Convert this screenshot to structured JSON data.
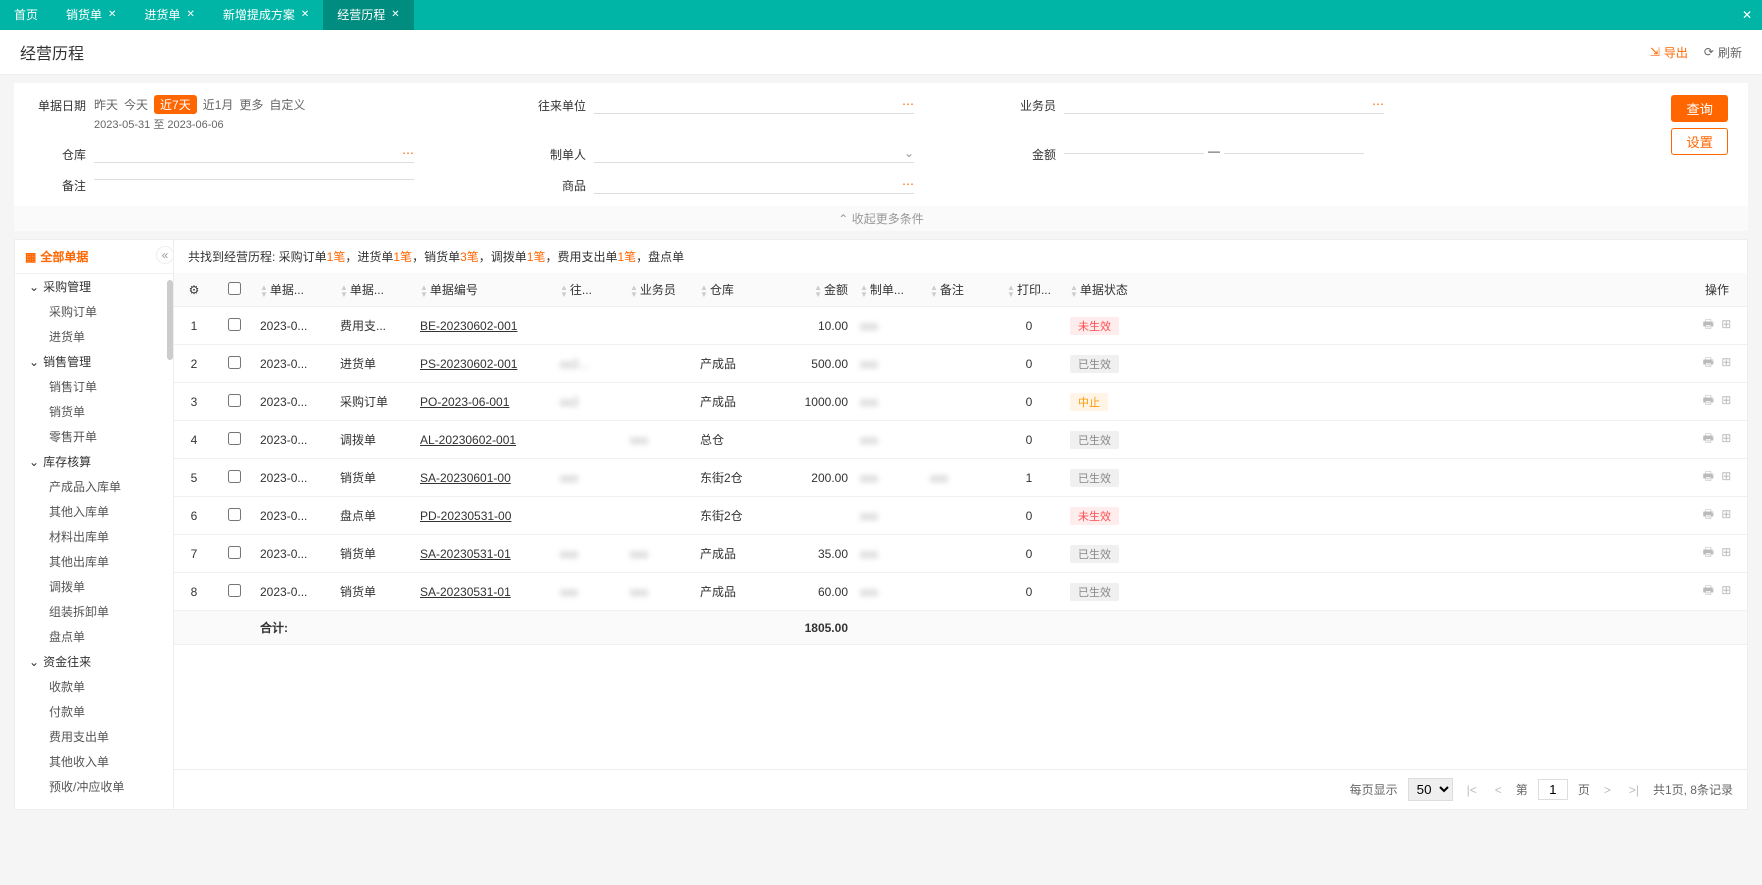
{
  "tabs": [
    {
      "label": "首页",
      "closable": false,
      "active": false
    },
    {
      "label": "销货单",
      "closable": true,
      "active": false
    },
    {
      "label": "进货单",
      "closable": true,
      "active": false
    },
    {
      "label": "新增提成方案",
      "closable": true,
      "active": false
    },
    {
      "label": "经营历程",
      "closable": true,
      "active": true
    }
  ],
  "page": {
    "title": "经营历程",
    "export_label": "导出",
    "refresh_label": "刷新"
  },
  "filters": {
    "date_label": "单据日期",
    "date_quick": [
      "昨天",
      "今天",
      "近7天",
      "近1月",
      "更多",
      "自定义"
    ],
    "date_active_index": 2,
    "date_range": "2023-05-31 至 2023-06-06",
    "partner_label": "往来单位",
    "biz_label": "业务员",
    "warehouse_label": "仓库",
    "maker_label": "制单人",
    "amount_label": "金额",
    "remark_label": "备注",
    "goods_label": "商品",
    "search_btn": "查询",
    "settings_btn": "设置",
    "collapse_label": "收起更多条件"
  },
  "sidebar": {
    "header": "全部单据",
    "groups": [
      {
        "title": "采购管理",
        "items": [
          "采购订单",
          "进货单"
        ]
      },
      {
        "title": "销售管理",
        "items": [
          "销售订单",
          "销货单",
          "零售开单"
        ]
      },
      {
        "title": "库存核算",
        "items": [
          "产成品入库单",
          "其他入库单",
          "材料出库单",
          "其他出库单",
          "调拨单",
          "组装拆卸单",
          "盘点单"
        ]
      },
      {
        "title": "资金往来",
        "items": [
          "收款单",
          "付款单",
          "费用支出单",
          "其他收入单",
          "预收/冲应收单"
        ]
      }
    ]
  },
  "summary": {
    "prefix": "共找到经营历程: ",
    "parts": [
      {
        "label": "采购订单",
        "count": "1笔"
      },
      {
        "label": "进货单",
        "count": "1笔"
      },
      {
        "label": "销货单",
        "count": "3笔"
      },
      {
        "label": "调拨单",
        "count": "1笔"
      },
      {
        "label": "费用支出单",
        "count": "1笔"
      },
      {
        "label": "盘点单",
        "count": ""
      }
    ]
  },
  "table": {
    "headers": {
      "date": "单据...",
      "type": "单据...",
      "number": "单据编号",
      "partner": "往...",
      "biz": "业务员",
      "warehouse": "仓库",
      "amount": "金额",
      "maker": "制单...",
      "remark": "备注",
      "print": "打印...",
      "status": "单据状态",
      "ops": "操作"
    },
    "rows": [
      {
        "idx": "1",
        "date": "2023-0...",
        "type": "费用支...",
        "num": "BE-20230602-001",
        "partner": "",
        "biz": "",
        "wh": "",
        "amt": "10.00",
        "maker": "xxx",
        "remark": "",
        "print": "0",
        "status": "未生效",
        "status_cls": "badge-red"
      },
      {
        "idx": "2",
        "date": "2023-0...",
        "type": "进货单",
        "num": "PS-20230602-001",
        "partner": "xx2...",
        "biz": "",
        "wh": "产成品",
        "amt": "500.00",
        "maker": "xxx",
        "remark": "",
        "print": "0",
        "status": "已生效",
        "status_cls": "badge-gray"
      },
      {
        "idx": "3",
        "date": "2023-0...",
        "type": "采购订单",
        "num": "PO-2023-06-001",
        "partner": "xx2",
        "biz": "",
        "wh": "产成品",
        "amt": "1000.00",
        "maker": "xxx",
        "remark": "",
        "print": "0",
        "status": "中止",
        "status_cls": "badge-orange"
      },
      {
        "idx": "4",
        "date": "2023-0...",
        "type": "调拨单",
        "num": "AL-20230602-001",
        "partner": "",
        "biz": "xxx",
        "wh": "总仓",
        "amt": "",
        "maker": "xxx",
        "remark": "",
        "print": "0",
        "status": "已生效",
        "status_cls": "badge-gray"
      },
      {
        "idx": "5",
        "date": "2023-0...",
        "type": "销货单",
        "num": "SA-20230601-00",
        "partner": "xxx",
        "biz": "",
        "wh": "东街2仓",
        "amt": "200.00",
        "maker": "xxx",
        "remark": "xxx",
        "print": "1",
        "status": "已生效",
        "status_cls": "badge-gray"
      },
      {
        "idx": "6",
        "date": "2023-0...",
        "type": "盘点单",
        "num": "PD-20230531-00",
        "partner": "",
        "biz": "",
        "wh": "东街2仓",
        "amt": "",
        "maker": "xxx",
        "remark": "",
        "print": "0",
        "status": "未生效",
        "status_cls": "badge-red"
      },
      {
        "idx": "7",
        "date": "2023-0...",
        "type": "销货单",
        "num": "SA-20230531-01",
        "partner": "xxx",
        "biz": "xxx",
        "wh": "产成品",
        "amt": "35.00",
        "maker": "xxx",
        "remark": "",
        "print": "0",
        "status": "已生效",
        "status_cls": "badge-gray"
      },
      {
        "idx": "8",
        "date": "2023-0...",
        "type": "销货单",
        "num": "SA-20230531-01",
        "partner": "xxx",
        "biz": "xxx",
        "wh": "产成品",
        "amt": "60.00",
        "maker": "xxx",
        "remark": "",
        "print": "0",
        "status": "已生效",
        "status_cls": "badge-gray"
      }
    ],
    "totals": {
      "label": "合计:",
      "amount": "1805.00"
    }
  },
  "pagination": {
    "per_page_label": "每页显示",
    "per_page": "50",
    "page_prefix": "第",
    "page": "1",
    "page_suffix": "页",
    "total": "共1页, 8条记录"
  }
}
